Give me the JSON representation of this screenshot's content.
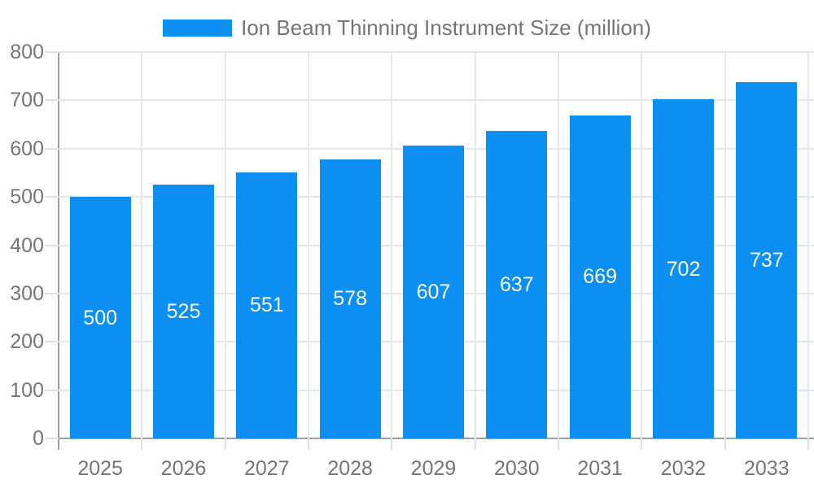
{
  "legend": {
    "label": "Ion Beam Thinning Instrument Size (million)",
    "swatch_color": "#0b8ff2"
  },
  "chart_data": {
    "type": "bar",
    "title": "Ion Beam Thinning Instrument Size (million)",
    "categories": [
      "2025",
      "2026",
      "2027",
      "2028",
      "2029",
      "2030",
      "2031",
      "2032",
      "2033"
    ],
    "values": [
      500,
      525,
      551,
      578,
      607,
      637,
      669,
      702,
      737
    ],
    "series": [
      {
        "name": "Ion Beam Thinning Instrument Size (million)",
        "values": [
          500,
          525,
          551,
          578,
          607,
          637,
          669,
          702,
          737
        ]
      }
    ],
    "xlabel": "",
    "ylabel": "",
    "ylim": [
      0,
      800
    ],
    "ytick_interval": 100,
    "ytick_labels": [
      "0",
      "100",
      "200",
      "300",
      "400",
      "500",
      "600",
      "700",
      "800"
    ],
    "grid": true,
    "legend_position": "top-center",
    "value_labels": "inside-center",
    "colors": {
      "bar": "#0b8ff2",
      "value_label": "#ffffff",
      "axis_text": "#757575",
      "gridline": "#e6e6e6",
      "axis_line": "#9e9e9e",
      "tick": "#e0e0e0",
      "background": "#ffffff"
    }
  }
}
